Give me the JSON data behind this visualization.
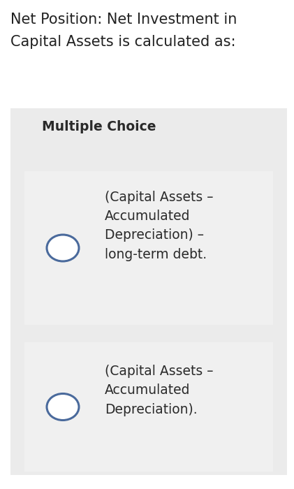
{
  "title_line1": "Net Position: Net Investment in",
  "title_line2": "Capital Assets is calculated as:",
  "title_fontsize": 15,
  "title_color": "#222222",
  "bg_color": "#ffffff",
  "panel_bg_color": "#ebebeb",
  "choice_bg_color": "#f0f0f0",
  "label_multiple_choice": "Multiple Choice",
  "label_mc_fontsize": 13.5,
  "choices": [
    "(Capital Assets –\nAccumulated\nDepreciation) –\nlong-term debt.",
    "(Capital Assets –\nAccumulated\nDepreciation)."
  ],
  "choice_fontsize": 13.5,
  "circle_edge_color": "#4a6a9c",
  "circle_face_color": "#ffffff",
  "circle_linewidth": 2.2,
  "text_color": "#2a2a2a",
  "fig_width": 4.21,
  "fig_height": 7.0,
  "dpi": 100
}
